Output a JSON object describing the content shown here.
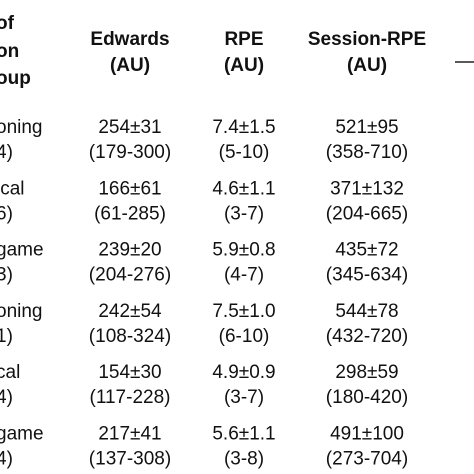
{
  "header": {
    "stub": [
      "of",
      "on",
      "oup"
    ],
    "columns": [
      [
        "Edwards",
        "(AU)"
      ],
      [
        "RPE",
        "(AU)"
      ],
      [
        "Session-RPE",
        "(AU)"
      ]
    ]
  },
  "rows": [
    {
      "group": [
        "oning",
        "4)"
      ],
      "cells": [
        [
          "254±31",
          "(179-300)"
        ],
        [
          "7.4±1.5",
          "(5-10)"
        ],
        [
          "521±95",
          "(358-710)"
        ]
      ]
    },
    {
      "group": [
        "ical",
        "6)"
      ],
      "cells": [
        [
          "166±61",
          "(61-285)"
        ],
        [
          "4.6±1.1",
          "(3-7)"
        ],
        [
          "371±132",
          "(204-665)"
        ]
      ]
    },
    {
      "group": [
        "game",
        "3)"
      ],
      "cells": [
        [
          "239±20",
          "(204-276)"
        ],
        [
          "5.9±0.8",
          "(4-7)"
        ],
        [
          "435±72",
          "(345-634)"
        ]
      ]
    },
    {
      "group": [
        "oning",
        "1)"
      ],
      "cells": [
        [
          "242±54",
          "(108-324)"
        ],
        [
          "7.5±1.0",
          "(6-10)"
        ],
        [
          "544±78",
          "(432-720)"
        ]
      ]
    },
    {
      "group": [
        "cal",
        "4)"
      ],
      "cells": [
        [
          "154±30",
          "(117-228)"
        ],
        [
          "4.9±0.9",
          "(3-7)"
        ],
        [
          "298±59",
          "(180-420)"
        ]
      ]
    },
    {
      "group": [
        "game",
        "4)"
      ],
      "cells": [
        [
          "217±41",
          "(137-308)"
        ],
        [
          "5.6±1.1",
          "(3-8)"
        ],
        [
          "491±100",
          "(273-704)"
        ]
      ]
    }
  ]
}
